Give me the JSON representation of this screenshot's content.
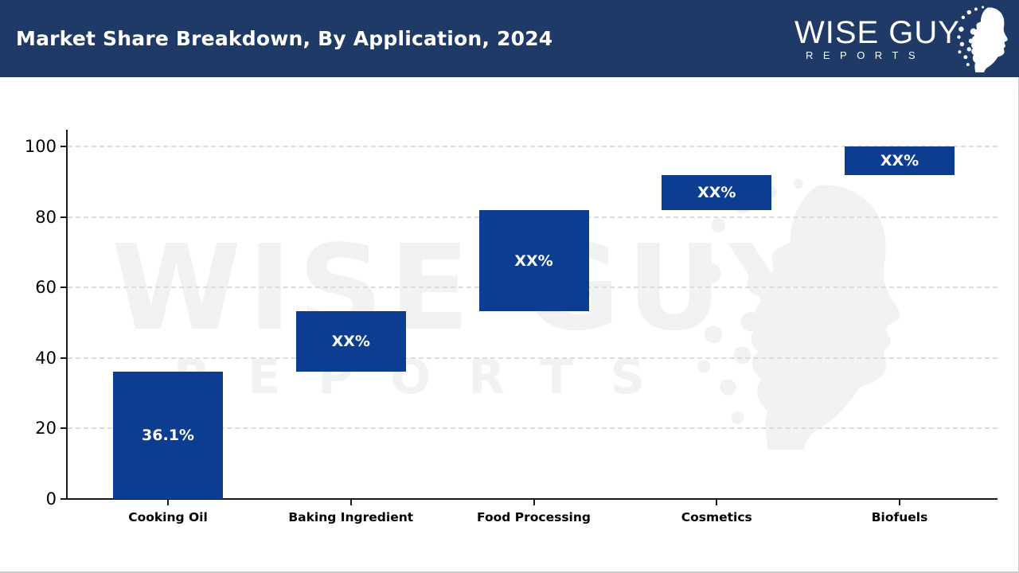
{
  "header": {
    "title": "Market Share Breakdown, By Application, 2024",
    "logo": {
      "line1": "WISE GUY",
      "line2": "REPORTS"
    }
  },
  "watermark": {
    "line1": "WISE GUY",
    "line2": "REPORTS"
  },
  "chart_data": {
    "type": "bar",
    "subtype": "waterfall",
    "title": "Market Share Breakdown, By Application, 2024",
    "categories": [
      "Cooking Oil",
      "Baking Ingredient",
      "Food Processing",
      "Cosmetics",
      "Biofuels"
    ],
    "segments": [
      {
        "category": "Cooking Oil",
        "start": 0,
        "end": 36.1,
        "label": "36.1%"
      },
      {
        "category": "Baking Ingredient",
        "start": 36.1,
        "end": 53.3,
        "label": "XX%"
      },
      {
        "category": "Food Processing",
        "start": 53.3,
        "end": 82.0,
        "label": "XX%"
      },
      {
        "category": "Cosmetics",
        "start": 82.0,
        "end": 92.0,
        "label": "XX%"
      },
      {
        "category": "Biofuels",
        "start": 92.0,
        "end": 100.0,
        "label": "XX%"
      }
    ],
    "xlabel": "",
    "ylabel": "",
    "y_ticks": [
      0,
      20,
      40,
      60,
      80,
      100
    ],
    "ylim": [
      0,
      105
    ],
    "grid": "dashed-horizontal",
    "legend": "none",
    "bar_color": "#0d3d91",
    "bar_label_color": "#ffffff"
  },
  "colors": {
    "header_bg": "#1f3a66",
    "accent_blue": "#0d3d91",
    "grid_gray": "#dcdcdc",
    "watermark_gray": "#f1f2f4",
    "axis_black": "#1a1a1a",
    "border_gray": "#cccccc"
  }
}
